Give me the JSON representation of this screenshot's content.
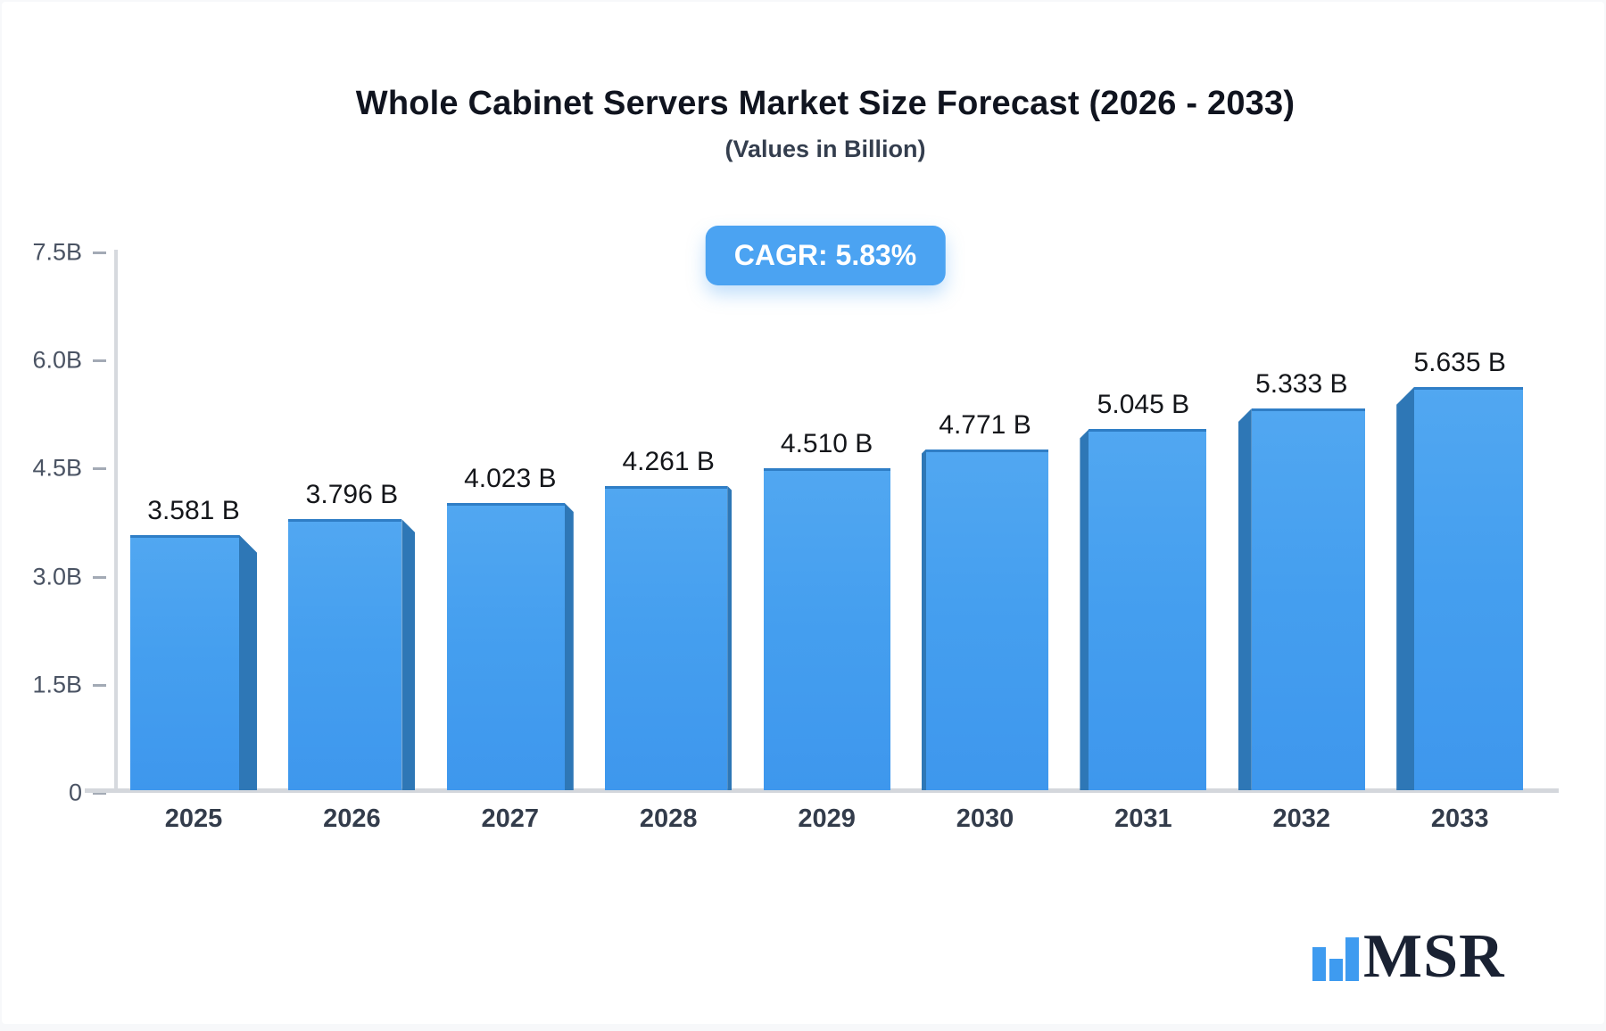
{
  "title": "Whole Cabinet Servers Market Size Forecast (2026 - 2033)",
  "subtitle": "(Values in Billion)",
  "badge": {
    "label": "CAGR: 5.83%",
    "bg_color": "#4ba3f2"
  },
  "chart_data": {
    "type": "bar",
    "title": "Whole Cabinet Servers Market Size Forecast (2026 - 2033)",
    "subtitle": "(Values in Billion)",
    "cagr": "5.83%",
    "categories": [
      "2025",
      "2026",
      "2027",
      "2028",
      "2029",
      "2030",
      "2031",
      "2032",
      "2033"
    ],
    "values": [
      3.581,
      3.796,
      4.023,
      4.261,
      4.51,
      4.771,
      5.045,
      5.333,
      5.635
    ],
    "value_labels": [
      "3.581 B",
      "3.796 B",
      "4.023 B",
      "4.261 B",
      "4.510 B",
      "4.771 B",
      "5.045 B",
      "5.333 B",
      "5.635 B"
    ],
    "unit": "Billion",
    "xlabel": "",
    "ylabel": "",
    "ylim": [
      0,
      7.5
    ],
    "y_ticks": [
      {
        "label": "7.5B",
        "value": 7.5
      },
      {
        "label": "6.0B",
        "value": 6.0
      },
      {
        "label": "4.5B",
        "value": 4.5
      },
      {
        "label": "3.0B",
        "value": 3.0
      },
      {
        "label": "1.5B",
        "value": 1.5
      },
      {
        "label": "0",
        "value": 0
      }
    ],
    "grid": false,
    "legend": false,
    "bar_face_color_top": "#51a7f1",
    "bar_face_color_bottom": "#3e97ed",
    "bar_side_color": "#2e77b6",
    "axis_color": "#d6d9de"
  },
  "logo": {
    "text": "MSR",
    "bar_color": "#3e9bf0",
    "text_color": "#1a2233"
  }
}
